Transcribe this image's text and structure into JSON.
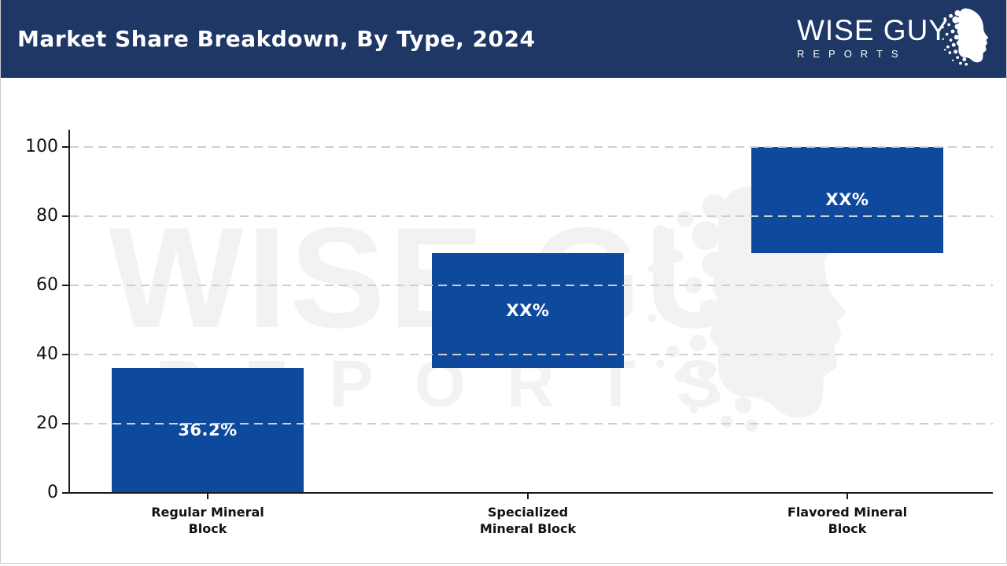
{
  "header": {
    "title": "Market Share Breakdown, By Type, 2024",
    "logo": {
      "line1": "WISE GUY",
      "line2": "REPORTS"
    }
  },
  "watermark": {
    "line1": "WISE GUY",
    "line2": "REPORTS"
  },
  "colors": {
    "header_bg": "#1F3764",
    "bar": "#0D4A9E",
    "grid": "#CFCFCF",
    "axis": "#1A1A1A",
    "bar_label": "#FFFFFF",
    "watermark": "#F2F2F4"
  },
  "chart_data": {
    "type": "bar",
    "subtype": "waterfall",
    "title": "Market Share Breakdown, By Type, 2024",
    "categories": [
      "Regular Mineral Block",
      "Specialized Mineral Block",
      "Flavored Mineral Block"
    ],
    "segments": [
      {
        "category": "Regular Mineral Block",
        "display": "Regular Mineral\nBlock",
        "start": 0,
        "end": 36.2,
        "label": "36.2%"
      },
      {
        "category": "Specialized Mineral Block",
        "display": "Specialized\nMineral Block",
        "start": 36.2,
        "end": 69.4,
        "label": "XX%"
      },
      {
        "category": "Flavored Mineral Block",
        "display": "Flavored Mineral\nBlock",
        "start": 69.4,
        "end": 100,
        "label": "XX%"
      }
    ],
    "ylim": [
      0,
      100
    ],
    "yticks": [
      0,
      20,
      40,
      60,
      80,
      100
    ],
    "xlabel": "",
    "ylabel": "",
    "grid": "horizontal-dashed",
    "legend": "none"
  }
}
